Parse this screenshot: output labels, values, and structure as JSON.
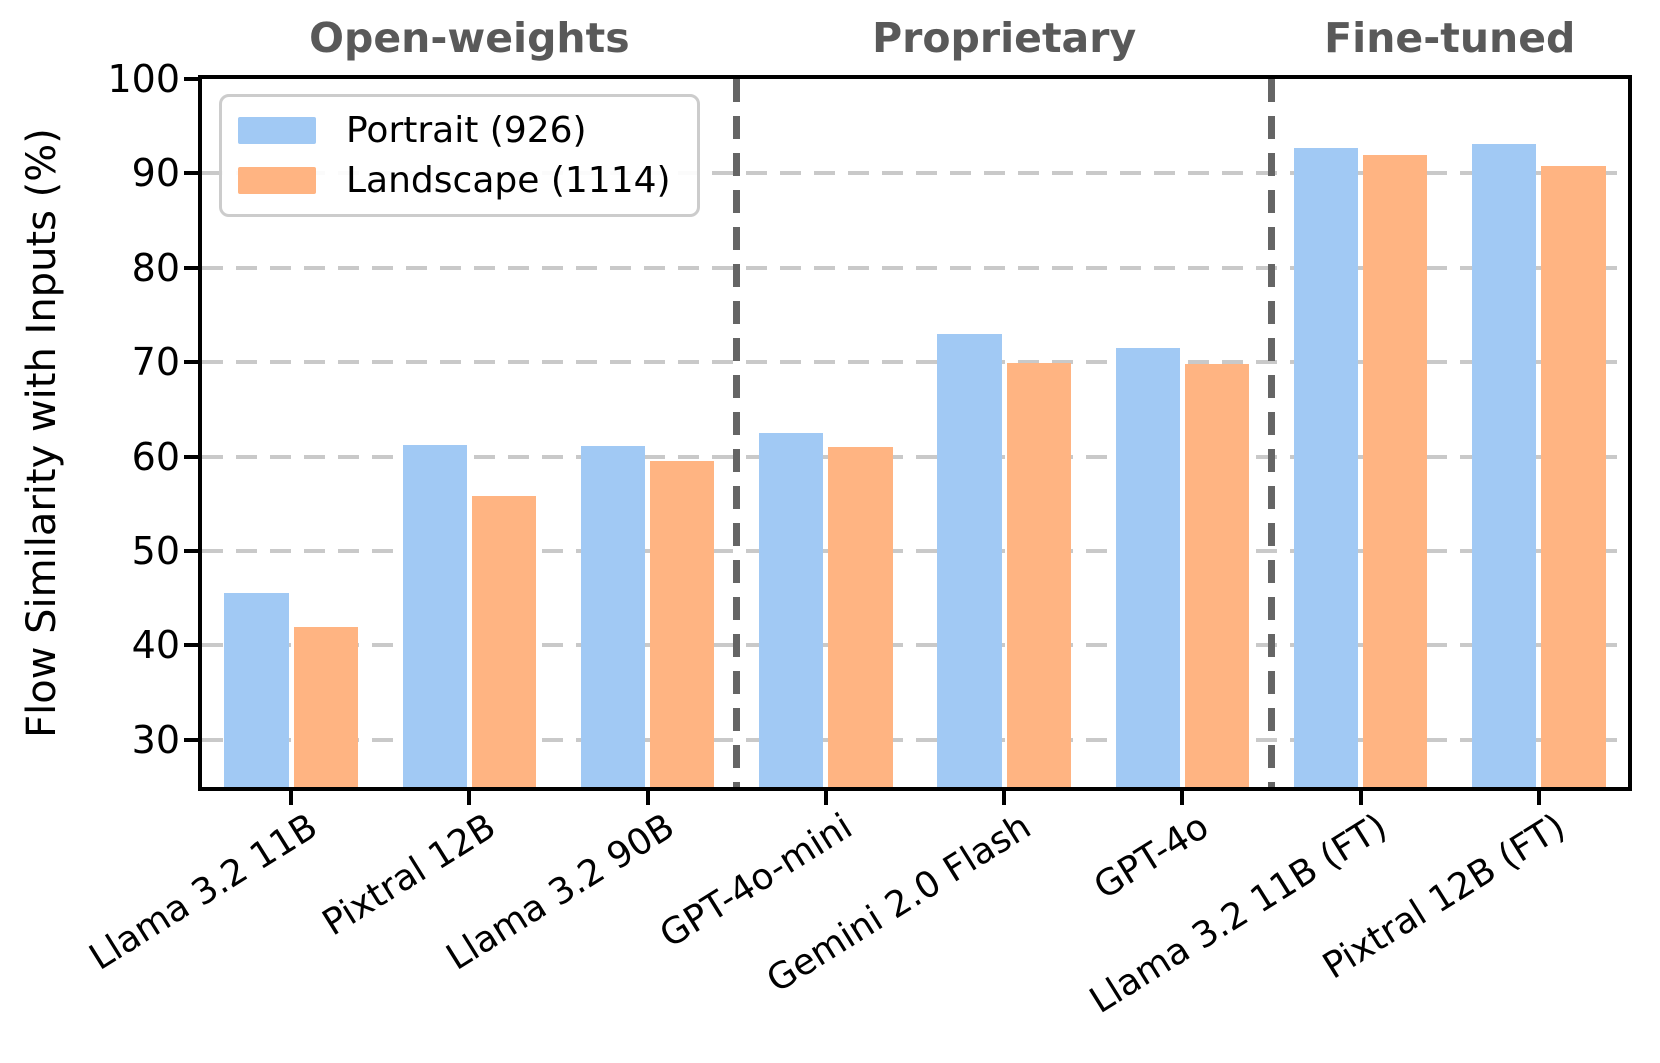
{
  "chart_data": {
    "type": "bar",
    "title": "",
    "xlabel": "",
    "ylabel": "Flow Similarity with Inputs (%)",
    "ylim": [
      25,
      100
    ],
    "yticks": [
      30,
      40,
      50,
      60,
      70,
      80,
      90,
      100
    ],
    "grid": "horizontal dashed gridlines on",
    "legend_position": "upper left",
    "categories": [
      "Llama 3.2 11B",
      "Pixtral 12B",
      "Llama 3.2 90B",
      "GPT-4o-mini",
      "Gemini 2.0 Flash",
      "GPT-4o",
      "Llama 3.2 11B (FT)",
      "Pixtral 12B (FT)"
    ],
    "series": [
      {
        "name": "Portrait (926)",
        "color": "#a1c9f4",
        "values": [
          45.5,
          61.2,
          61.1,
          62.5,
          73.0,
          71.5,
          92.7,
          93.1
        ]
      },
      {
        "name": "Landscape (1114)",
        "color": "#ffb482",
        "values": [
          42.0,
          55.8,
          59.5,
          61.0,
          69.9,
          69.8,
          92.0,
          90.8
        ]
      }
    ],
    "sections": [
      {
        "label": "Open-weights",
        "span": [
          0,
          3
        ]
      },
      {
        "label": "Proprietary",
        "span": [
          3,
          6
        ]
      },
      {
        "label": "Fine-tuned",
        "span": [
          6,
          8
        ]
      }
    ],
    "separators_after_category": [
      3,
      6
    ],
    "section_header_color": "#595959",
    "gridline_color": "#c9c9c9",
    "separator_color": "#656565",
    "axis_color": "#000000"
  }
}
